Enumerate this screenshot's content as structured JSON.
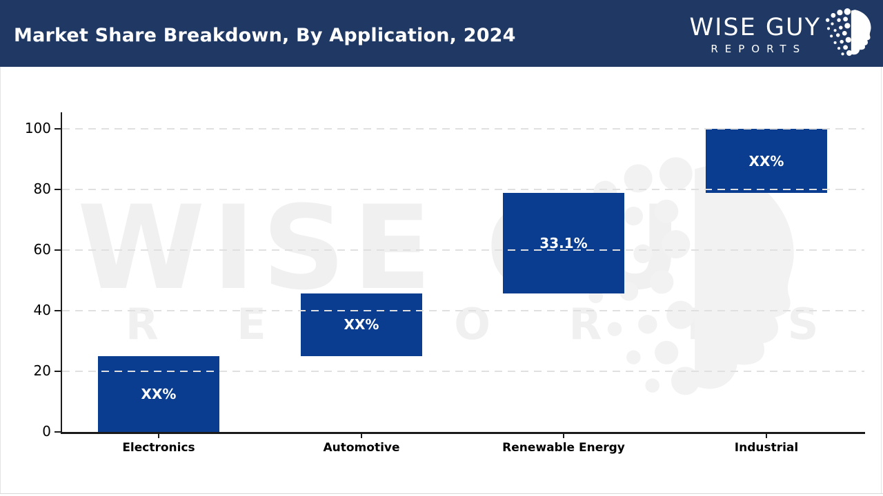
{
  "header": {
    "title": "Market Share Breakdown, By Application, 2024",
    "background_color": "#1f3864",
    "logo": {
      "brand": "WISE GUY",
      "sub": "REPORTS"
    }
  },
  "watermark": {
    "brand": "WISE GU",
    "sub": "R E P O R T S"
  },
  "chart_data": {
    "type": "bar",
    "subtype": "floating-waterfall",
    "title": "Market Share Breakdown, By Application, 2024",
    "categories": [
      "Electronics",
      "Automotive",
      "Renewable Energy",
      "Industrial"
    ],
    "bars": [
      {
        "category": "Electronics",
        "start": 0,
        "end": 25.0,
        "value": 25.0,
        "label": "XX%"
      },
      {
        "category": "Automotive",
        "start": 25.0,
        "end": 45.7,
        "value": 20.7,
        "label": "XX%"
      },
      {
        "category": "Renewable Energy",
        "start": 45.7,
        "end": 78.8,
        "value": 33.1,
        "label": "33.1%"
      },
      {
        "category": "Industrial",
        "start": 78.8,
        "end": 100.0,
        "value": 21.2,
        "label": "XX%"
      }
    ],
    "xlabel": "",
    "ylabel": "",
    "yticks": [
      0,
      20,
      40,
      60,
      80,
      100
    ],
    "ylim": [
      0,
      105
    ],
    "bar_color": "#0a3d8f",
    "bar_label_color": "#ffffff",
    "axis_color": "#1a1a1a",
    "grid": {
      "horizontal": true,
      "style": "dashed",
      "color": "#e0e0e0",
      "above_bars": true
    },
    "legend": "none"
  }
}
